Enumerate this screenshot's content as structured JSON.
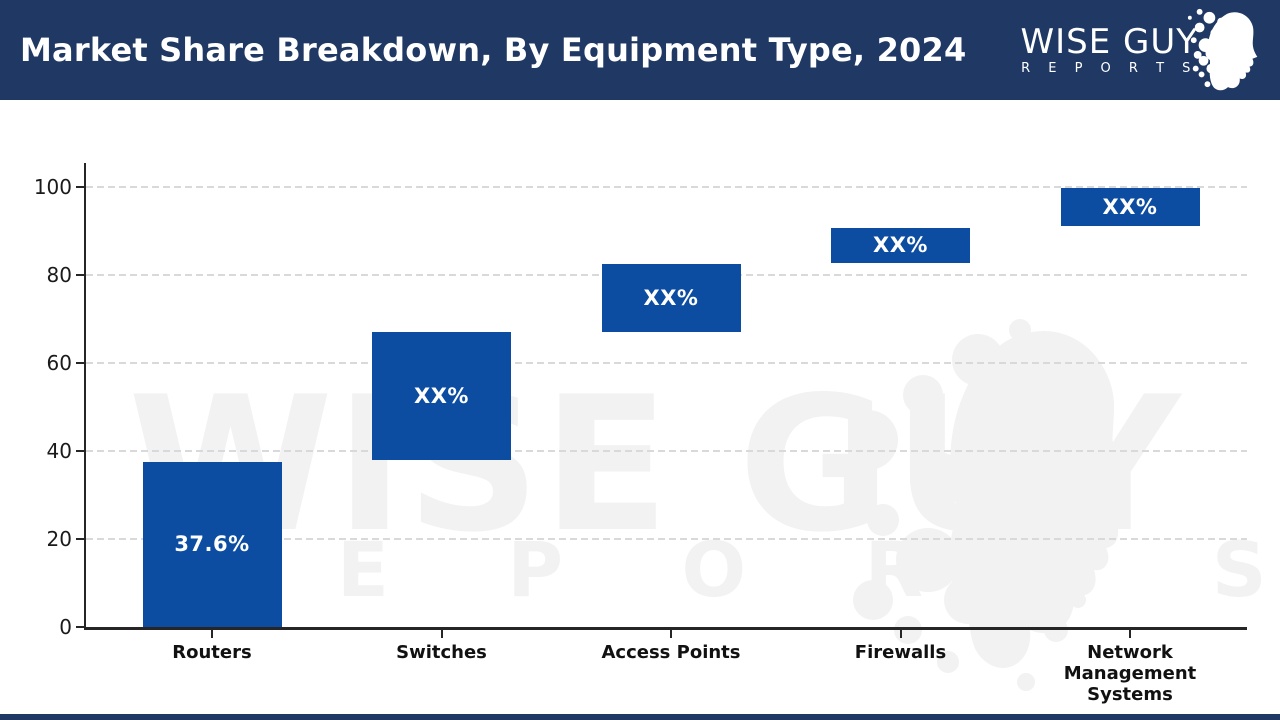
{
  "header": {
    "title": "Market Share Breakdown, By Equipment Type, 2024",
    "logo": {
      "wordmark": "WISE GUY",
      "subtext": "R E P O R T S",
      "face_icon": "head-profile-dots-icon"
    }
  },
  "watermark": {
    "wordmark": "WISE GUY",
    "subtext": "R E P O R T S",
    "face_icon": "head-profile-dots-icon"
  },
  "colors": {
    "header_bg": "#1F3864",
    "bar": "#0C4DA2",
    "bar_label_text": "#FFFFFF",
    "gridline": "#D9D9D9",
    "axis": "#262626",
    "watermark": "#F2F2F3"
  },
  "chart_data": {
    "type": "bar",
    "subtype": "waterfall",
    "title": "Market Share Breakdown, By Equipment Type, 2024",
    "xlabel": "",
    "ylabel": "",
    "categories": [
      "Routers",
      "Switches",
      "Access Points",
      "Firewalls",
      "Network Management Systems"
    ],
    "segments": [
      {
        "category": "Routers",
        "start": 0,
        "end": 37.6,
        "label": "37.6%"
      },
      {
        "category": "Switches",
        "start": 37.9,
        "end": 67.1,
        "label": "XX%"
      },
      {
        "category": "Access Points",
        "start": 67.0,
        "end": 82.6,
        "label": "XX%"
      },
      {
        "category": "Firewalls",
        "start": 82.8,
        "end": 90.7,
        "label": "XX%"
      },
      {
        "category": "Network Management Systems",
        "start": 91.2,
        "end": 99.8,
        "label": "XX%"
      }
    ],
    "yticks": [
      0,
      20,
      40,
      60,
      80,
      100
    ],
    "ylim": [
      0,
      105
    ],
    "grid": "horizontal-dashed",
    "legend": "none"
  }
}
